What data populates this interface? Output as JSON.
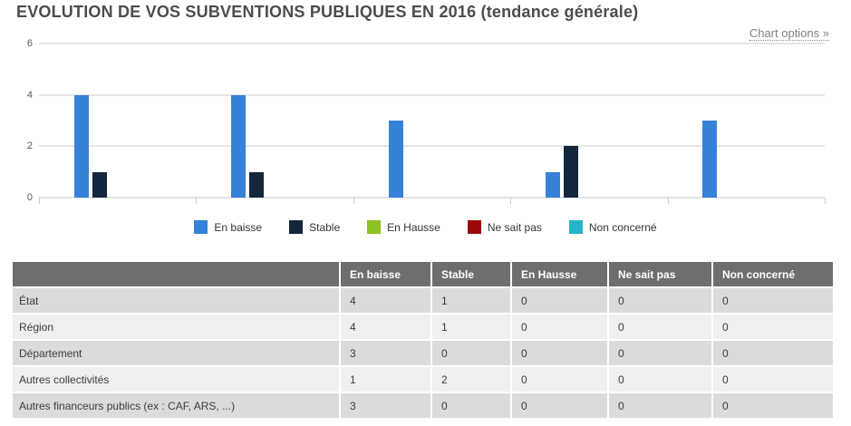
{
  "title": "EVOLUTION DE VOS SUBVENTIONS PUBLIQUES EN 2016 (tendance générale)",
  "chart_options_label": "Chart options »",
  "colors": {
    "en_baisse": "#3582d8",
    "stable": "#13263c",
    "en_hausse": "#8ec022",
    "ne_sait_pas": "#9c0909",
    "non_concerne": "#26b4c9",
    "grid": "#e6e6e6",
    "axis_tick": "#c3ccda",
    "table_header_bg": "#6e6e6e",
    "row_odd_bg": "#dbdbdb",
    "row_even_bg": "#efefef"
  },
  "chart_data": {
    "type": "bar",
    "title": "EVOLUTION DE VOS SUBVENTIONS PUBLIQUES EN 2016 (tendance générale)",
    "categories": [
      "État",
      "Région",
      "Département",
      "Autres collectivités",
      "Autres financeurs publics (ex : CAF, ARS, ...)"
    ],
    "series": [
      {
        "name": "En baisse",
        "color": "#3582d8",
        "values": [
          4,
          4,
          3,
          1,
          3
        ]
      },
      {
        "name": "Stable",
        "color": "#13263c",
        "values": [
          1,
          1,
          0,
          2,
          0
        ]
      },
      {
        "name": "En Hausse",
        "color": "#8ec022",
        "values": [
          0,
          0,
          0,
          0,
          0
        ]
      },
      {
        "name": "Ne sait pas",
        "color": "#9c0909",
        "values": [
          0,
          0,
          0,
          0,
          0
        ]
      },
      {
        "name": "Non concerné",
        "color": "#26b4c9",
        "values": [
          0,
          0,
          0,
          0,
          0
        ]
      }
    ],
    "xlabel": "",
    "ylabel": "",
    "ylim": [
      0,
      6
    ],
    "yticks": [
      0,
      2,
      4,
      6
    ],
    "grid": true,
    "legend_position": "bottom",
    "x_category_labels_shown": false
  },
  "table": {
    "columns": [
      "",
      "En baisse",
      "Stable",
      "En Hausse",
      "Ne sait pas",
      "Non concerné"
    ],
    "rows": [
      {
        "label": "État",
        "values": [
          4,
          1,
          0,
          0,
          0
        ]
      },
      {
        "label": "Région",
        "values": [
          4,
          1,
          0,
          0,
          0
        ]
      },
      {
        "label": "Département",
        "values": [
          3,
          0,
          0,
          0,
          0
        ]
      },
      {
        "label": "Autres collectivités",
        "values": [
          1,
          2,
          0,
          0,
          0
        ]
      },
      {
        "label": "Autres financeurs publics (ex : CAF, ARS, ...)",
        "values": [
          3,
          0,
          0,
          0,
          0
        ]
      }
    ]
  }
}
